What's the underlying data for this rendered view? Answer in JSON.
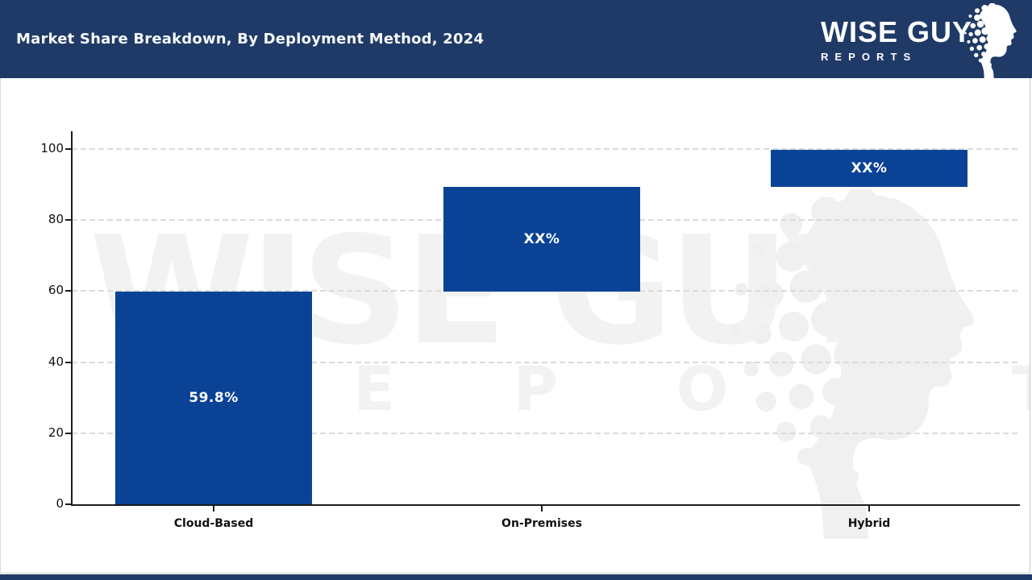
{
  "header": {
    "title": "Market Share Breakdown, By Deployment Method, 2024",
    "bg_color": "#1f3a67",
    "logo": {
      "name": "WISE GUY",
      "subtitle": "REPORTS"
    }
  },
  "watermark": {
    "line1": "WISE GUY",
    "line2": "R E P O R T S"
  },
  "chart_data": {
    "type": "bar",
    "variant": "waterfall",
    "title": "Market Share Breakdown, By Deployment Method, 2024",
    "categories": [
      "Cloud-Based",
      "On-Premises",
      "Hybrid"
    ],
    "segments": [
      {
        "category": "Cloud-Based",
        "start": 0,
        "end": 59.8,
        "label": "59.8%",
        "estimated_value": 59.8
      },
      {
        "category": "On-Premises",
        "start": 59.8,
        "end": 89.4,
        "label": "XX%",
        "estimated_value": 29.6
      },
      {
        "category": "Hybrid",
        "start": 89.4,
        "end": 99.8,
        "label": "XX%",
        "estimated_value": 10.4
      }
    ],
    "xlabel": "",
    "ylabel": "",
    "ylim": [
      0,
      105
    ],
    "yticks": [
      0,
      20,
      40,
      60,
      80,
      100
    ],
    "grid": "horizontal dashed",
    "legend": "none",
    "bar_color": "#0a4396",
    "bar_label_color": "#ffffff",
    "axis_color": "#1c1c1c"
  },
  "footer": {
    "bg_color": "#1f3a67"
  }
}
